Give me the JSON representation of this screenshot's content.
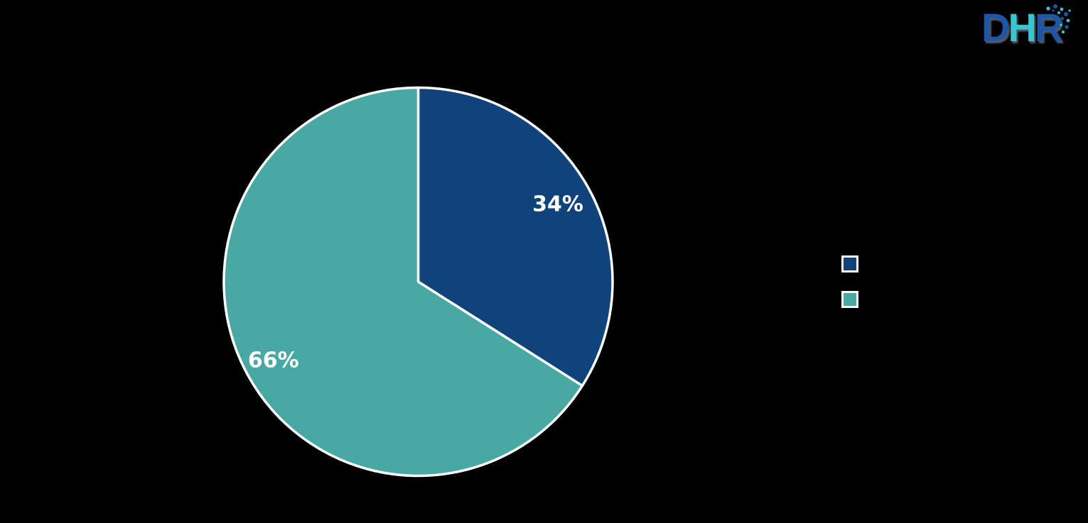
{
  "background": "#000000",
  "logo": {
    "letters": [
      {
        "char": "D",
        "color": "#1e55a5"
      },
      {
        "char": "H",
        "color": "#3bc4d1"
      },
      {
        "char": "R",
        "color": "#1e55a5"
      }
    ]
  },
  "chart_data": {
    "type": "pie",
    "slices": [
      {
        "value": 34,
        "display_label": "34%",
        "color": "#0f4379"
      },
      {
        "value": 66,
        "display_label": "66%",
        "color": "#47a8a4"
      }
    ],
    "start_angle": "top",
    "direction": "clockwise",
    "label_color": "#ffffff",
    "edge_color": "#ffffff",
    "legend": {
      "position": "right",
      "items": [
        {
          "color": "#0f4379",
          "label": ""
        },
        {
          "color": "#47a8a4",
          "label": ""
        }
      ]
    }
  }
}
